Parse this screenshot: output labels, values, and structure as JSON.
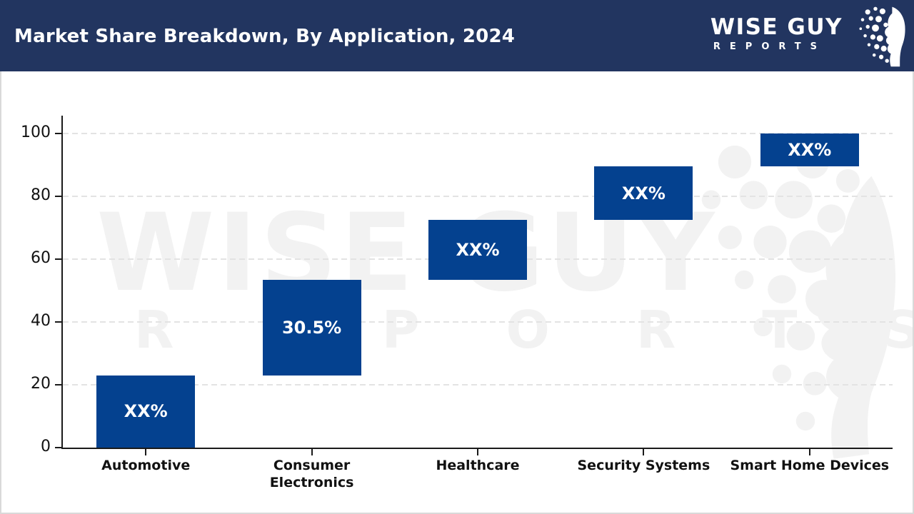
{
  "header": {
    "title": "Market Share Breakdown, By Application, 2024",
    "bg_color": "#223560",
    "logo_line1": "WISE GUY",
    "logo_line2": "REPORTS"
  },
  "watermark": {
    "line1": "WISE GUY",
    "line2": "R E P O R T S"
  },
  "chart_data": {
    "type": "bar",
    "variant": "waterfall",
    "title": "Market Share Breakdown, By Application, 2024",
    "categories": [
      "Automotive",
      "Consumer\nElectronics",
      "Healthcare",
      "Security Systems",
      "Smart Home Devices"
    ],
    "values": [
      23,
      30.5,
      19,
      17,
      10.5
    ],
    "bars": [
      {
        "start": 0,
        "end": 23,
        "label": "XX%"
      },
      {
        "start": 23,
        "end": 53.5,
        "label": "30.5%"
      },
      {
        "start": 53.5,
        "end": 72.5,
        "label": "XX%"
      },
      {
        "start": 72.5,
        "end": 89.5,
        "label": "XX%"
      },
      {
        "start": 89.5,
        "end": 100,
        "label": "XX%"
      }
    ],
    "yticks": [
      0,
      20,
      40,
      60,
      80,
      100
    ],
    "ylim": [
      0,
      106
    ],
    "xlabel": "",
    "ylabel": "",
    "grid": true,
    "grid_style": "dashed",
    "legend_position": "none",
    "bar_color": "#04418f",
    "bar_label_color": "#ffffff",
    "axis_color": "#1a1a1a",
    "grid_color": "#e3e3e3"
  }
}
